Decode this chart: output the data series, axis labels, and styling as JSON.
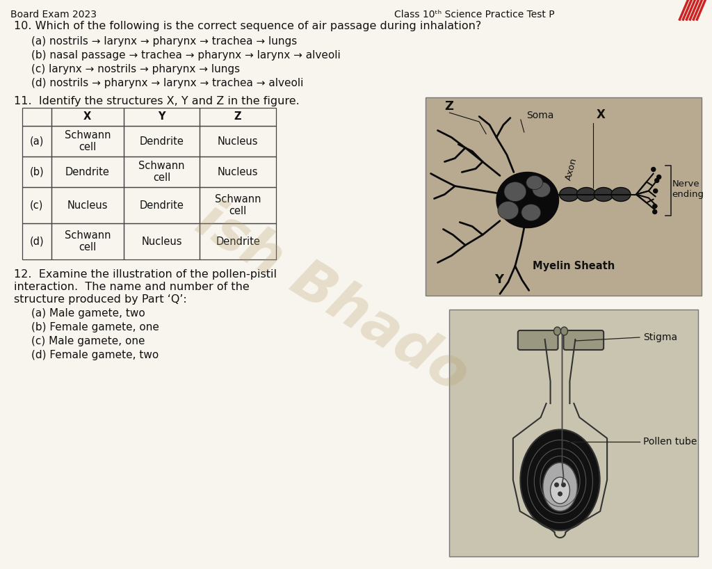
{
  "page_bg": "#f8f5ee",
  "header_left": "Board Exam 2023",
  "header_right": "Class 10ᵗʰ Science Practice Test P",
  "q10_text": "10. Which of the following is the correct sequence of air passage during inhalation?",
  "q10_options": [
    "(a) nostrils → larynx → pharynx → trachea → lungs",
    "(b) nasal passage → trachea → pharynx → larynx → alveoli",
    "(c) larynx → nostrils → pharynx → lungs",
    "(d) nostrils → pharynx → larynx → trachea → alveoli"
  ],
  "q11_text": "11.  Identify the structures X, Y and Z in the figure.",
  "table_headers": [
    "",
    "X",
    "Y",
    "Z"
  ],
  "table_rows": [
    [
      "(a)",
      "Schwann\ncell",
      "Dendrite",
      "Nucleus"
    ],
    [
      "(b)",
      "Dendrite",
      "Schwann\ncell",
      "Nucleus"
    ],
    [
      "(c)",
      "Nucleus",
      "Dendrite",
      "Schwann\ncell"
    ],
    [
      "(d)",
      "Schwann\ncell",
      "Nucleus",
      "Dendrite"
    ]
  ],
  "q12_text_line1": "12.  Examine the illustration of the pollen-pistil",
  "q12_text_line2": "interaction.  The name and number of the",
  "q12_text_line3": "structure produced by Part ‘Q’:",
  "q12_options": [
    "(a) Male gamete, two",
    "(b) Female gamete, one",
    "(c) Male gamete, one",
    "(d) Female gamete, two"
  ],
  "watermark": "ish Bhado",
  "text_color": "#111111",
  "neuron_bg": "#b8aa90",
  "pistil_bg": "#c8c4b0",
  "table_border": "#444444"
}
